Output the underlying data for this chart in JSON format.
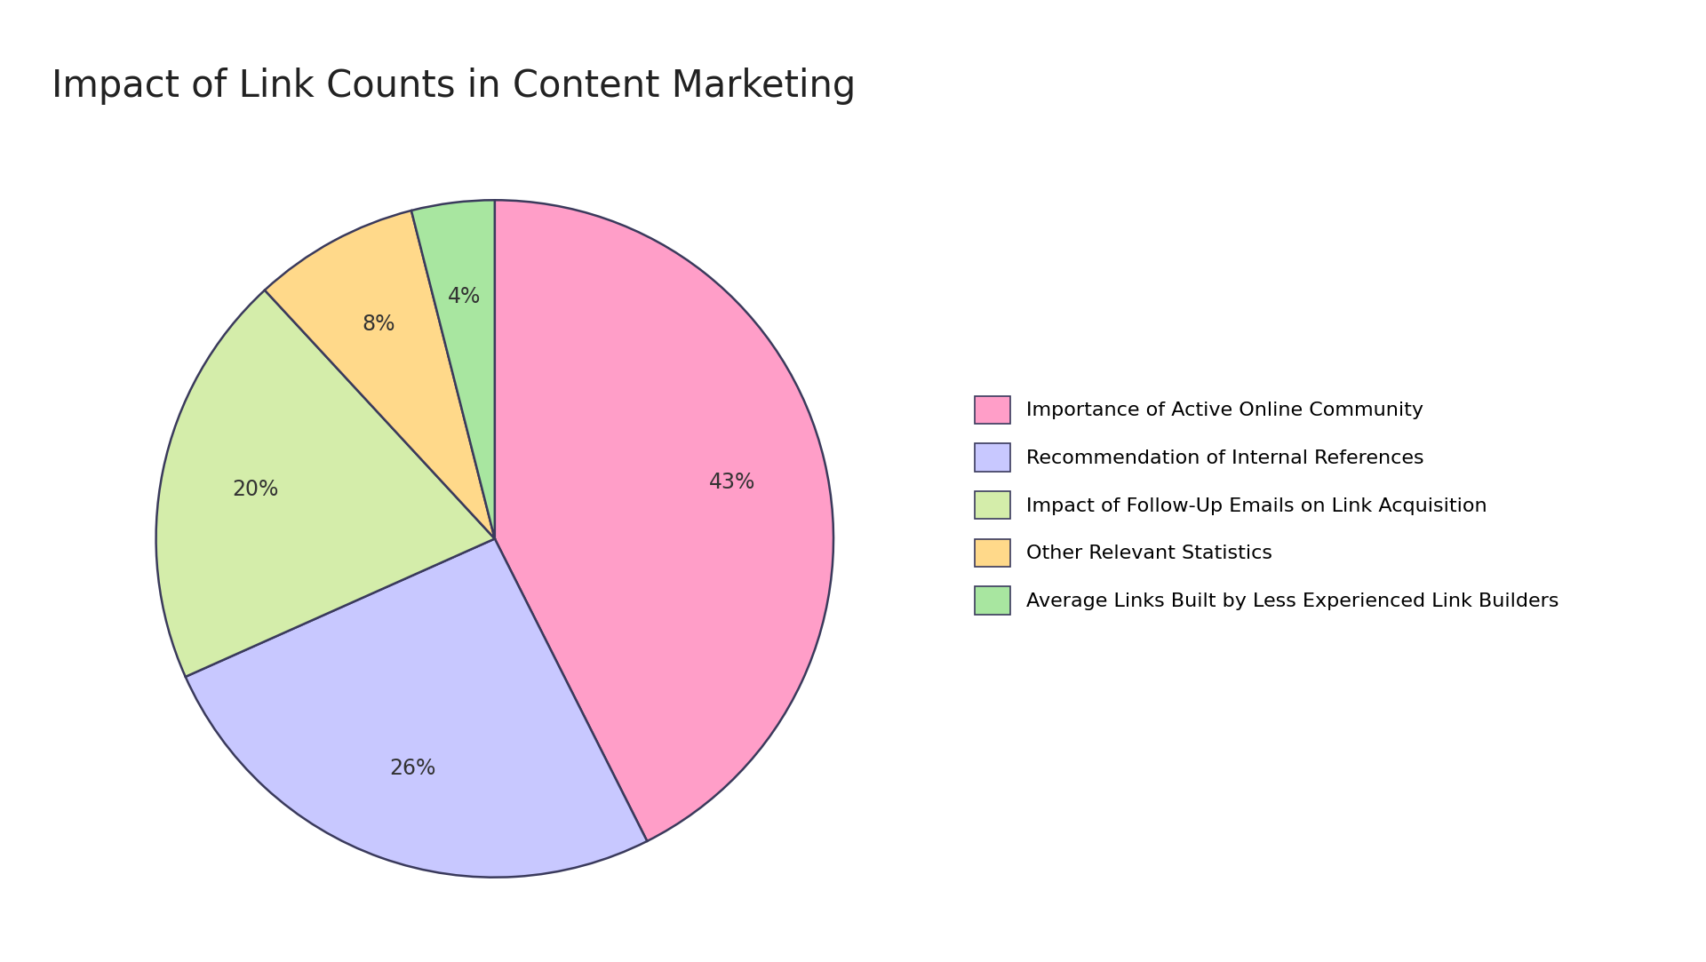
{
  "title": "Impact of Link Counts in Content Marketing",
  "labels": [
    "Importance of Active Online Community",
    "Recommendation of Internal References",
    "Impact of Follow-Up Emails on Link Acquisition",
    "Other Relevant Statistics",
    "Average Links Built by Less Experienced Link Builders"
  ],
  "values": [
    43,
    26,
    20,
    8,
    4
  ],
  "colors": [
    "#FF9EC8",
    "#C8C8FF",
    "#D4EDAA",
    "#FFD98A",
    "#A8E6A0"
  ],
  "edge_color": "#3a3a5c",
  "edge_width": 1.8,
  "background_color": "#ffffff",
  "title_fontsize": 30,
  "label_fontsize": 17,
  "legend_fontsize": 16,
  "startangle": 90,
  "pct_distance": 0.72
}
